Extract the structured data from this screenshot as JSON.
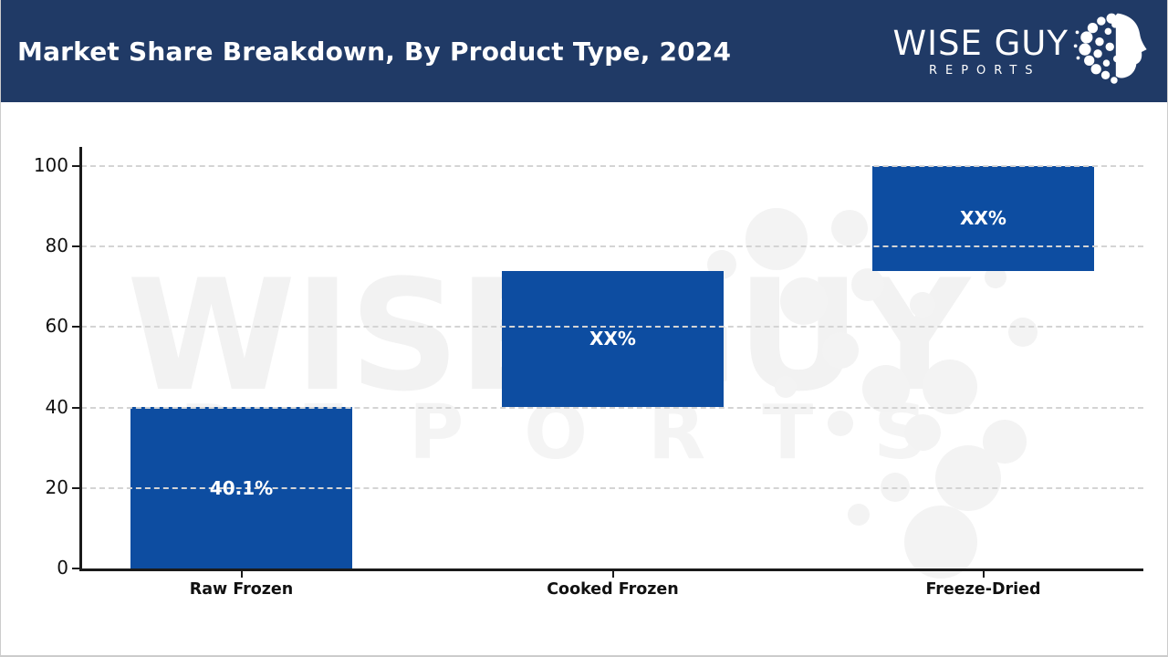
{
  "header": {
    "title": "Market Share Breakdown, By Product Type, 2024",
    "logo": {
      "line1": "WISE GUY",
      "line2": "REPORTS",
      "face_icon": "dotted-face-profile"
    }
  },
  "watermark": {
    "line1": "WISE GUY",
    "line2": "REPORTS"
  },
  "chart_data": {
    "type": "bar",
    "subtype": "cumulative-waterfall",
    "title": "Market Share Breakdown, By Product Type, 2024",
    "categories": [
      "Raw Frozen",
      "Cooked Frozen",
      "Freeze-Dried"
    ],
    "segments": [
      {
        "category": "Raw Frozen",
        "start": 0,
        "end": 40.1,
        "label": "40.1%"
      },
      {
        "category": "Cooked Frozen",
        "start": 40.1,
        "end": 74,
        "label": "XX%"
      },
      {
        "category": "Freeze-Dried",
        "start": 74,
        "end": 100,
        "label": "XX%"
      }
    ],
    "xlabel": "",
    "ylabel": "",
    "yticks": [
      0,
      20,
      40,
      60,
      80,
      100
    ],
    "ylim": [
      0,
      105
    ],
    "grid": "horizontal-dashed, drawn above bars",
    "legend": "none"
  },
  "colors": {
    "header_bg": "#203a66",
    "bar": "#0d4da1",
    "bar_label": "#ffffff",
    "grid": "#d4d4d4",
    "axis": "#1a1a1a",
    "tick_label": "#111111",
    "watermark": "#f2f2f2",
    "title_text": "#ffffff"
  }
}
